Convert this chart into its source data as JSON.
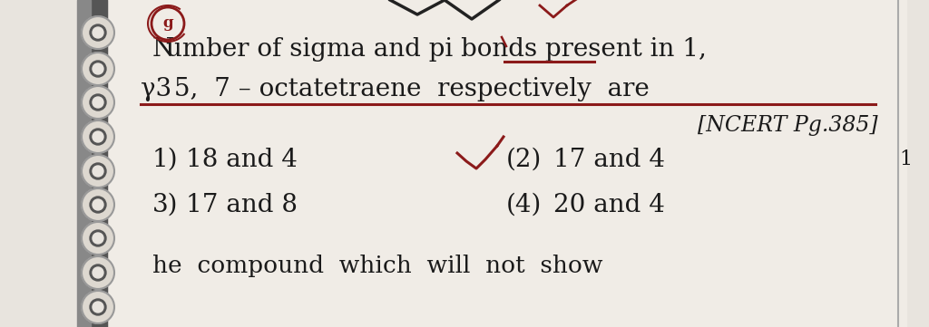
{
  "bg_color": "#e8e4de",
  "text_color": "#1a1a1a",
  "red_color": "#8b1a1a",
  "spiral_color": "#cccccc",
  "dark_spiral": "#444444",
  "line1": "umber of sigma and pi bonds present in 1,",
  "line2": "3 5,  7 – octatetraene  respectively  are",
  "reference": "[NCERT Pg.385]",
  "opt1_num": "1)",
  "opt1_text": "18 and 4",
  "opt2_num": "(2)",
  "opt2_text": "17 and 4",
  "opt3_num": "3)",
  "opt3_text": "17 and 8",
  "opt4_num": "(4)",
  "opt4_text": "20 and 4",
  "bottom": "he  compound  which  will  not  show",
  "page_num": "1",
  "font_size_main": 20,
  "font_size_options": 20,
  "font_size_ref": 17,
  "font_size_bottom": 19,
  "font_size_small": 13
}
